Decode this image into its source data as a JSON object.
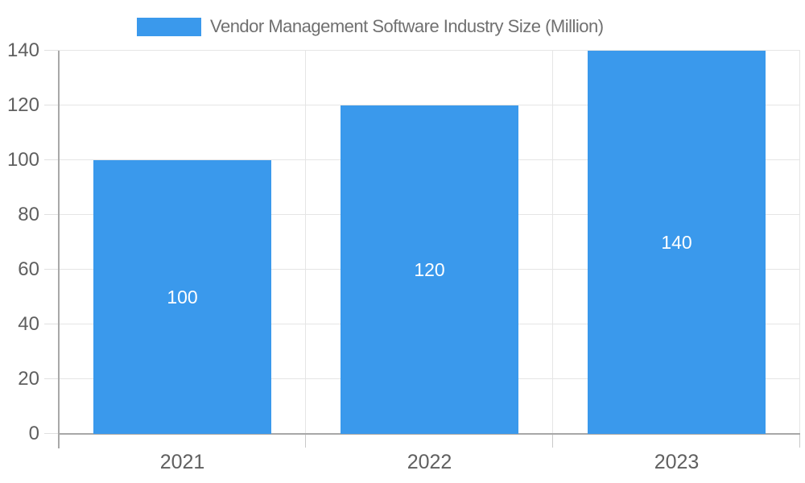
{
  "chart_data": {
    "type": "bar",
    "title": "Vendor Management Software Industry Size (Million)",
    "categories": [
      "2021",
      "2022",
      "2023"
    ],
    "series": [
      {
        "name": "Vendor Management Software Industry Size (Million)",
        "values": [
          100,
          120,
          140
        ]
      }
    ],
    "data_labels": [
      "100",
      "120",
      "140"
    ],
    "xlabel": "",
    "ylabel": "",
    "ylim": [
      0,
      140
    ],
    "y_ticks": [
      "0",
      "20",
      "40",
      "60",
      "80",
      "100",
      "120",
      "140"
    ],
    "y_tick_step": 20,
    "grid": "on",
    "legend_position": "top",
    "colors": {
      "bar": "#3A99EC",
      "grid": "#E5E5E5",
      "axis": "#A8A8A8",
      "tick_label": "#5F5F5F",
      "legend_text": "#707070",
      "data_label": "#FFFFFF",
      "background": "#FFFFFF"
    }
  }
}
